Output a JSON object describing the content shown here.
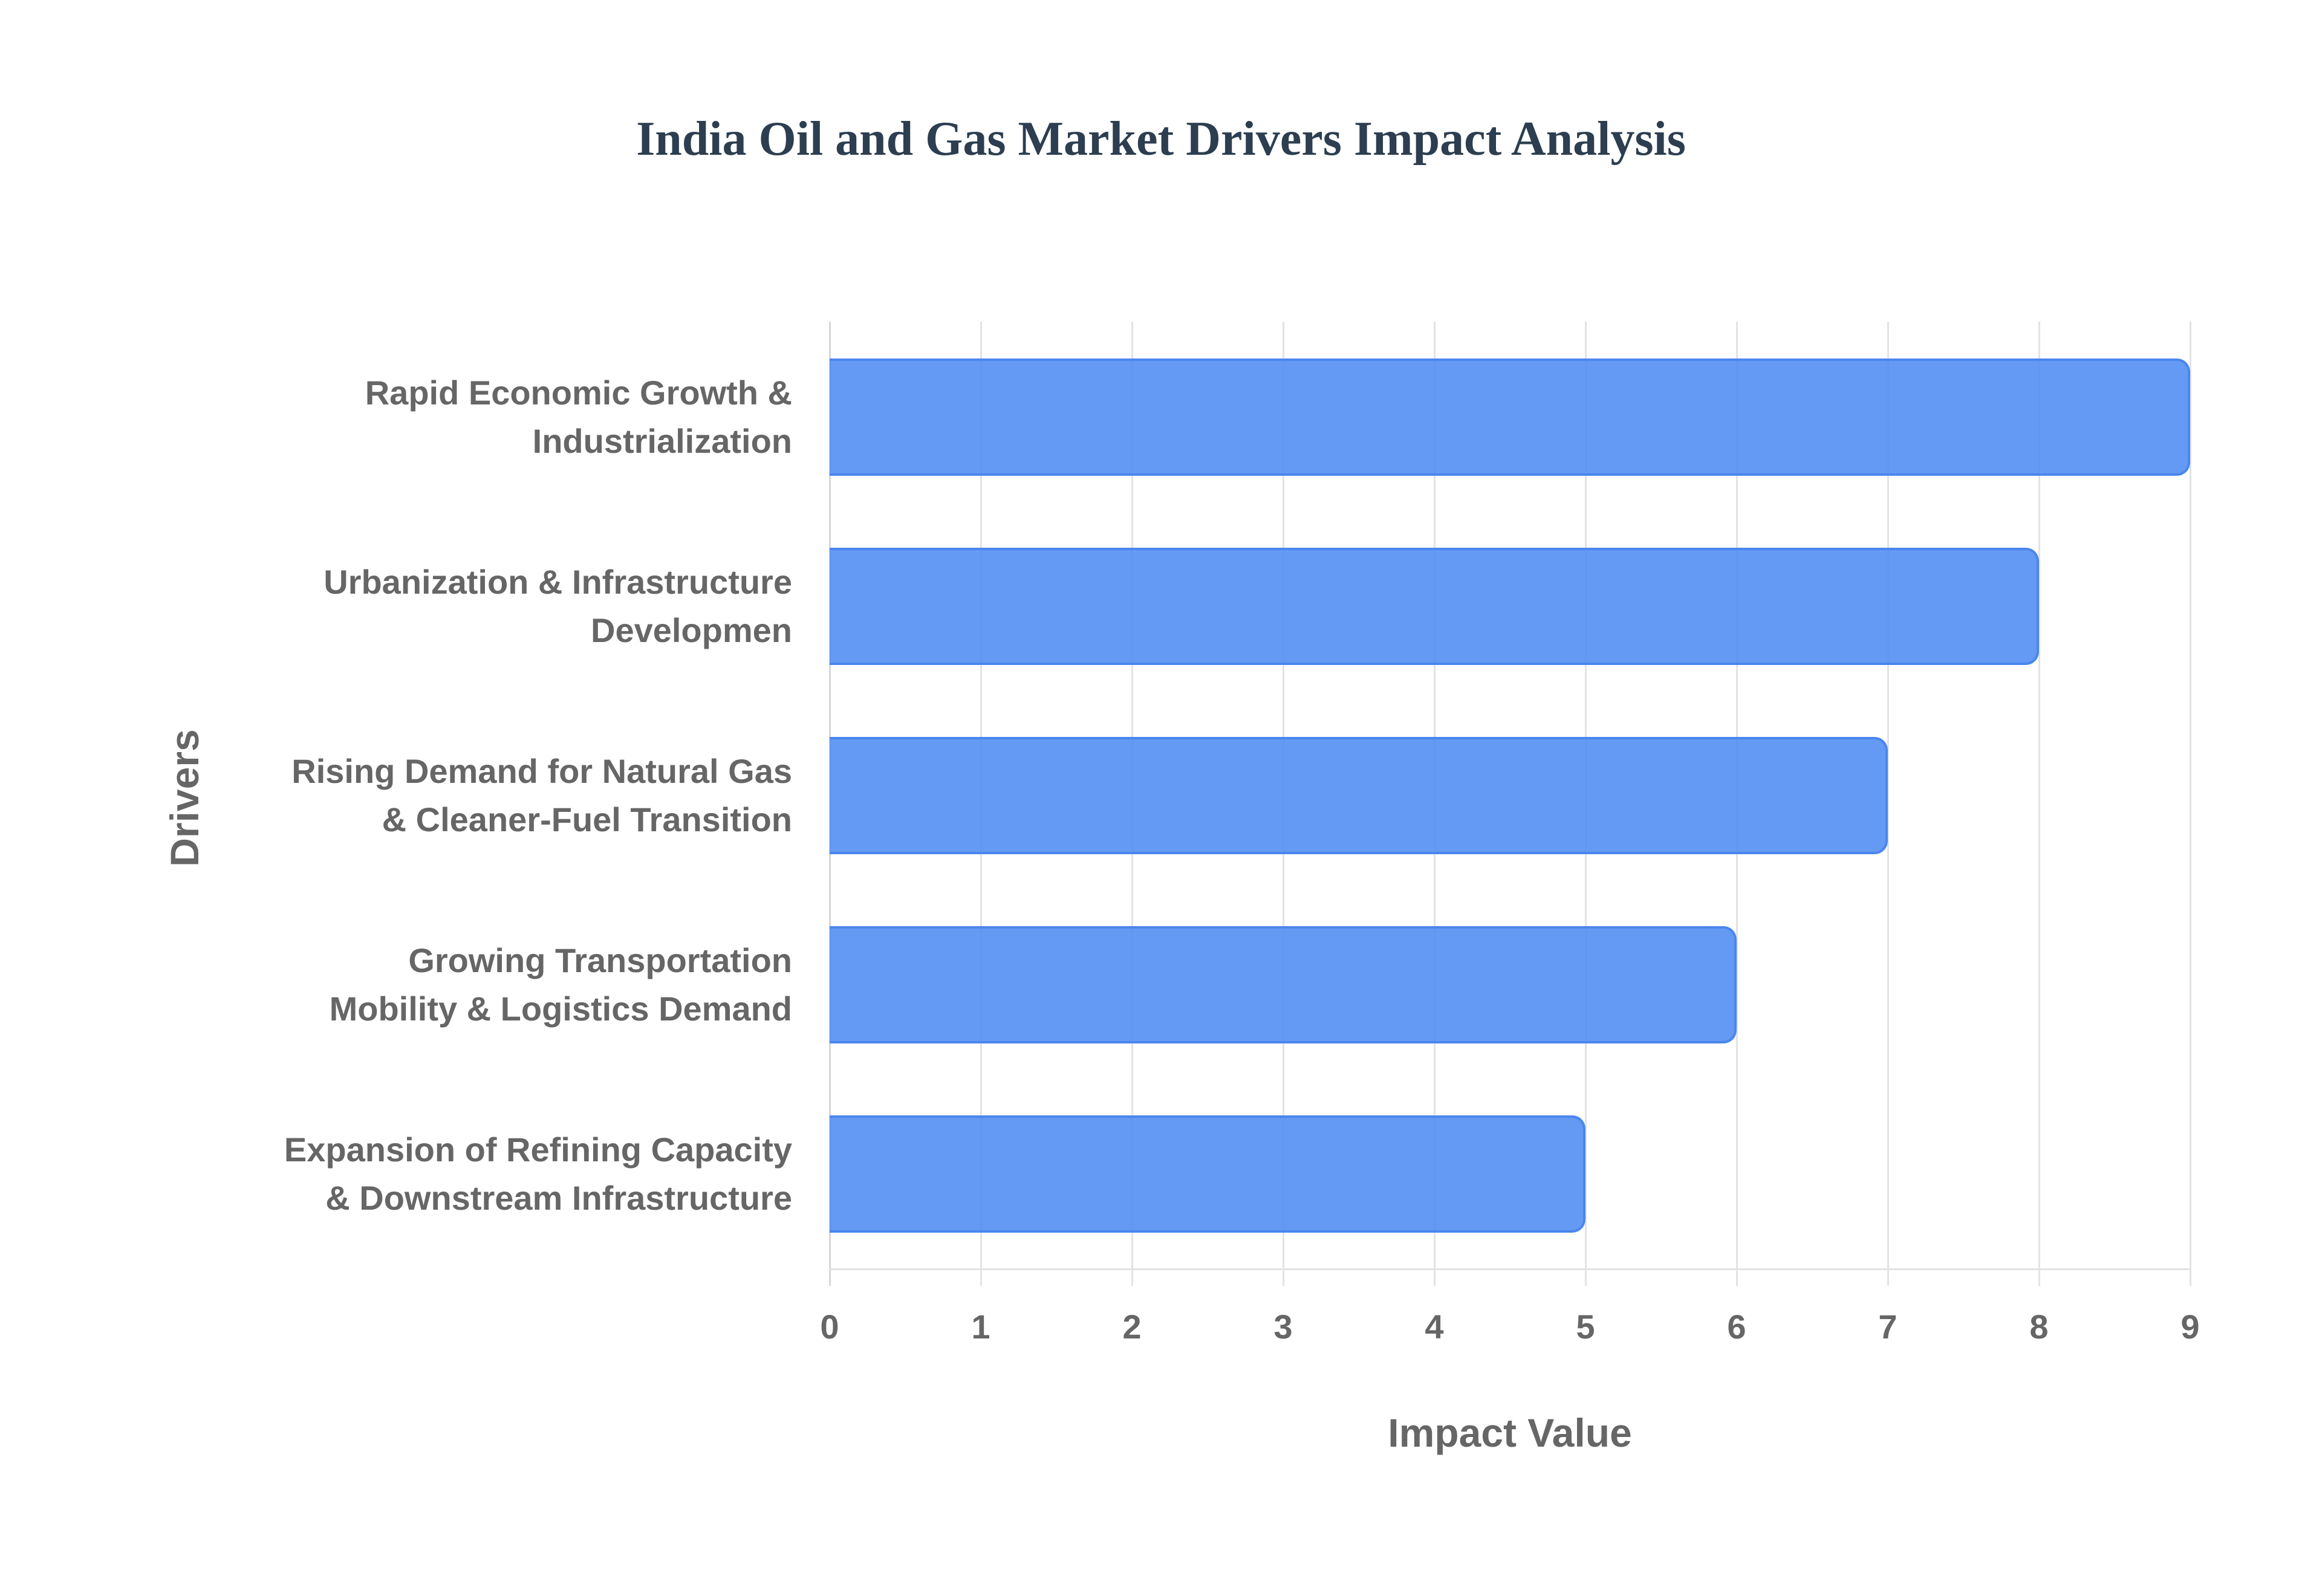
{
  "chart_data": {
    "type": "bar",
    "orientation": "horizontal",
    "title": "India Oil and Gas Market Drivers Impact Analysis",
    "xlabel": "Impact Value",
    "ylabel": "Drivers",
    "categories": [
      "Rapid Economic Growth & Industrialization",
      "Urbanization & Infrastructure Developmen",
      "Rising Demand for Natural Gas & Cleaner-Fuel Transition",
      "Growing Transportation Mobility & Logistics Demand",
      "Expansion of Refining Capacity & Downstream Infrastructure"
    ],
    "values": [
      9,
      8,
      7,
      6,
      5
    ],
    "xlim": [
      0,
      9
    ],
    "xticks": [
      "0",
      "1",
      "2",
      "3",
      "4",
      "5",
      "6",
      "7",
      "8",
      "9"
    ],
    "grid": true,
    "legend": null,
    "bar_color": "#6399f5",
    "bar_border_color": "#4a86ee"
  },
  "labels": [
    {
      "line1": "Rapid Economic Growth &",
      "line2": "Industrialization"
    },
    {
      "line1": "Urbanization & Infrastructure",
      "line2": "Developmen"
    },
    {
      "line1": "Rising Demand for Natural Gas",
      "line2": "& Cleaner-Fuel Transition"
    },
    {
      "line1": "Growing Transportation",
      "line2": "Mobility & Logistics Demand"
    },
    {
      "line1": "Expansion of Refining Capacity",
      "line2": "& Downstream Infrastructure"
    }
  ]
}
